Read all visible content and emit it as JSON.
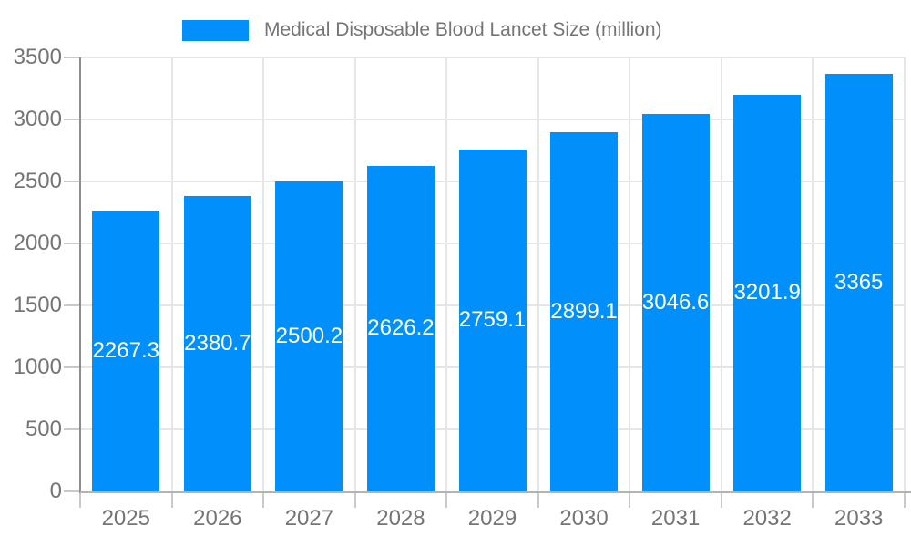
{
  "chart_data": {
    "type": "bar",
    "title": "Medical Disposable Blood Lancet Size (million)",
    "categories": [
      "2025",
      "2026",
      "2027",
      "2028",
      "2029",
      "2030",
      "2031",
      "2032",
      "2033"
    ],
    "series": [
      {
        "name": "Medical Disposable Blood Lancet Size (million)",
        "values": [
          2267.3,
          2380.7,
          2500.2,
          2626.2,
          2759.1,
          2899.1,
          3046.6,
          3201.9,
          3365
        ]
      }
    ],
    "values": [
      2267.3,
      2380.7,
      2500.2,
      2626.2,
      2759.1,
      2899.1,
      3046.6,
      3201.9,
      3365
    ],
    "bar_labels": [
      "2267.3",
      "2380.7",
      "2500.2",
      "2626.2",
      "2759.1",
      "2899.1",
      "3046.6",
      "3201.9",
      "3365"
    ],
    "xlabel": "",
    "ylabel": "",
    "ylim": [
      0,
      3500
    ],
    "ytick_step": 500,
    "yticks": [
      "0",
      "500",
      "1000",
      "1500",
      "2000",
      "2500",
      "3000",
      "3500"
    ],
    "grid": true,
    "legend_position": "top",
    "colors": {
      "bar": "#008FFB",
      "bar_value_label": "#ffffff",
      "axis_text": "#757575",
      "gridline": "#e6e6e6",
      "y_axis_line": "#8e8e8e",
      "x_axis_line": "#b3b3b3",
      "tick": "#c9c9c9"
    }
  }
}
